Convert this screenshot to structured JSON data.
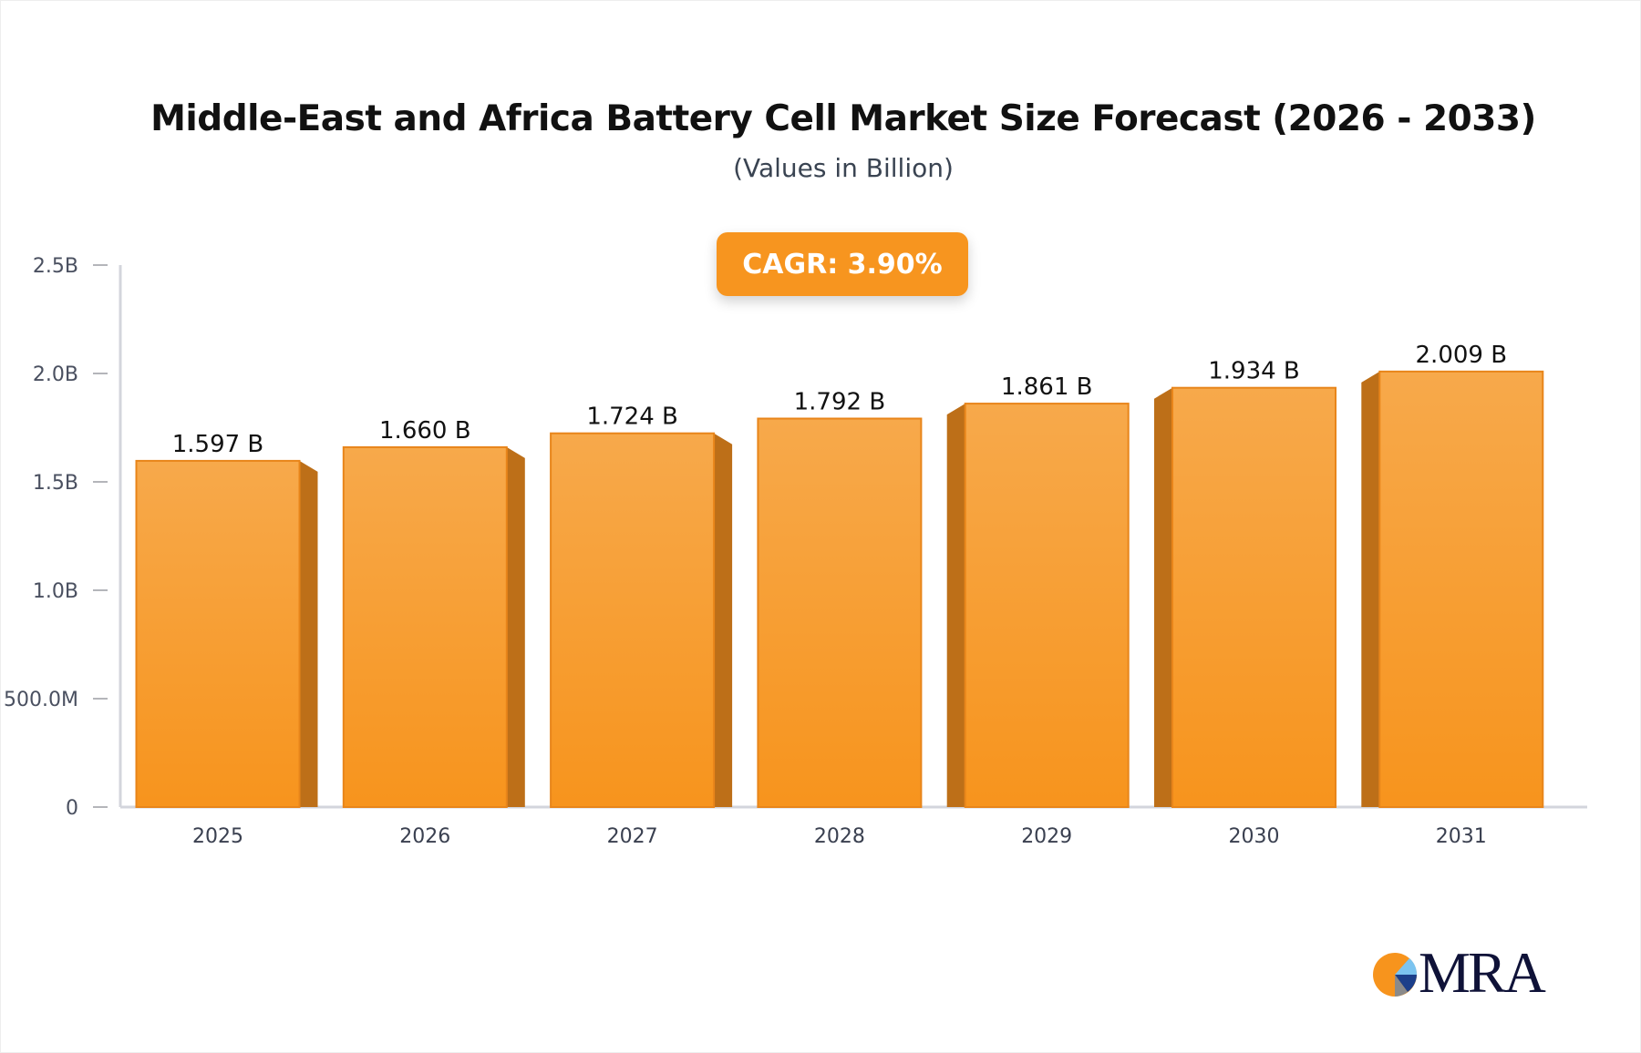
{
  "chart_data": {
    "type": "bar",
    "title": "Middle-East and Africa Battery Cell Market Size Forecast (2026 - 2033)",
    "subtitle": "(Values in Billion)",
    "annotation": "CAGR: 3.90%",
    "categories": [
      "2025",
      "2026",
      "2027",
      "2028",
      "2029",
      "2030",
      "2031"
    ],
    "values": [
      1.597,
      1.66,
      1.724,
      1.792,
      1.861,
      1.934,
      2.009
    ],
    "data_labels": [
      "1.597 B",
      "1.660 B",
      "1.724 B",
      "1.792 B",
      "1.861 B",
      "1.934 B",
      "2.009 B"
    ],
    "y_ticks": [
      0,
      0.5,
      1.0,
      1.5,
      2.0,
      2.5
    ],
    "y_tick_labels": [
      "0",
      "500.0M",
      "1.0B",
      "1.5B",
      "2.0B",
      "2.5B"
    ],
    "ylim": [
      0,
      2.5
    ],
    "xlabel": "",
    "ylabel": "",
    "grid": false,
    "colors": {
      "bar_top": "#f7a94b",
      "bar_bottom": "#f7941d",
      "bar_side": "#bd6f18",
      "accent": "#f7951f"
    }
  },
  "logo": {
    "text": "MRA"
  }
}
